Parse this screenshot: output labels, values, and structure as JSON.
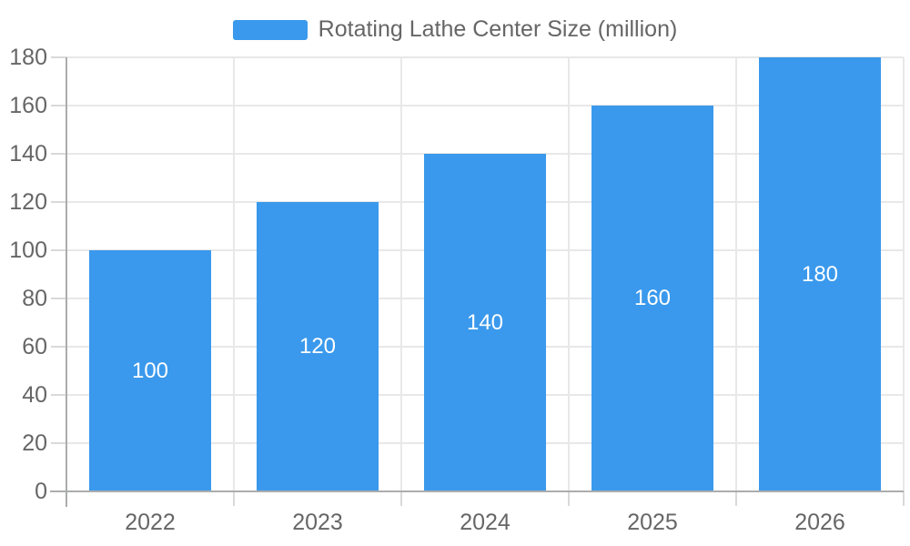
{
  "chart_data": {
    "type": "bar",
    "title": "Rotating Lathe Center Size (million)",
    "categories": [
      "2022",
      "2023",
      "2024",
      "2025",
      "2026"
    ],
    "series": [
      {
        "name": "Rotating Lathe Center Size (million)",
        "values": [
          100,
          120,
          140,
          160,
          180
        ]
      }
    ],
    "value_labels": [
      "100",
      "120",
      "140",
      "160",
      "180"
    ],
    "xlabel": "",
    "ylabel": "",
    "ylim": [
      0,
      180
    ],
    "ytick_step": 20,
    "yticks": [
      "0",
      "20",
      "40",
      "60",
      "80",
      "100",
      "120",
      "140",
      "160",
      "180"
    ],
    "grid": true,
    "legend": {
      "position": "top-center",
      "items": [
        "Rotating Lathe Center Size (million)"
      ]
    },
    "colors": {
      "bar": "#3a99ec",
      "value_label": "#ffffff",
      "axis_text": "#666666",
      "gridline": "#e8e8e8",
      "axis_line": "#abacad",
      "tick": "#d9d9d9"
    }
  }
}
